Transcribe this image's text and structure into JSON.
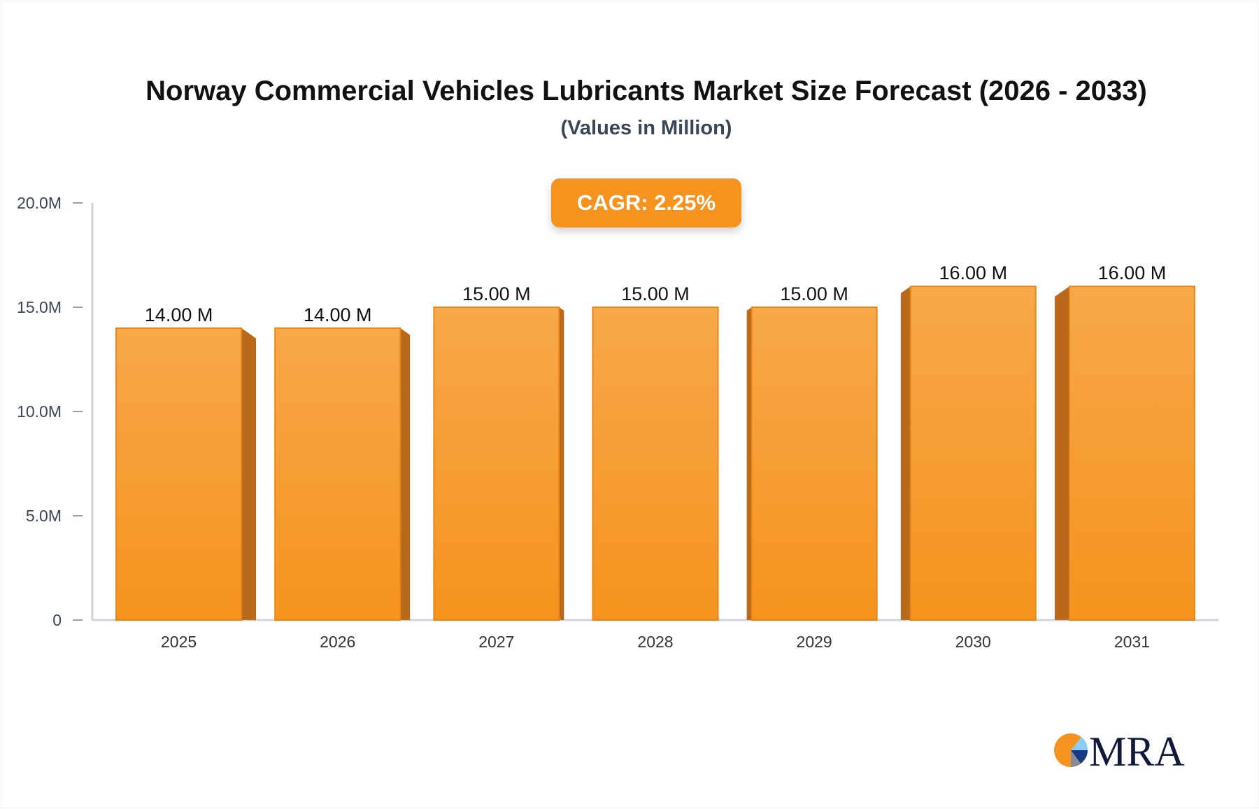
{
  "chart_data": {
    "type": "bar",
    "title": "Norway Commercial Vehicles Lubricants Market Size Forecast (2026 - 2033)",
    "subtitle": "(Values in Million)",
    "annotation": "CAGR: 2.25%",
    "categories": [
      "2025",
      "2026",
      "2027",
      "2028",
      "2029",
      "2030",
      "2031"
    ],
    "values": [
      14,
      14,
      15,
      15,
      15,
      16,
      16
    ],
    "data_labels": [
      "14.00 M",
      "14.00 M",
      "15.00 M",
      "15.00 M",
      "15.00 M",
      "16.00 M",
      "16.00 M"
    ],
    "ylim": [
      0,
      20
    ],
    "yticks": [
      0,
      5,
      10,
      15,
      20
    ],
    "ytick_labels": [
      "0",
      "5.0M",
      "10.0M",
      "15.0M",
      "20.0M"
    ],
    "xlabel": "",
    "ylabel": "",
    "grid": false,
    "colors": {
      "bar": "#f6931e",
      "bar_top": "#f7a84a",
      "bar_side": "#b8691a",
      "axis": "#d0d3da"
    }
  },
  "logo": {
    "text": "MRA"
  }
}
